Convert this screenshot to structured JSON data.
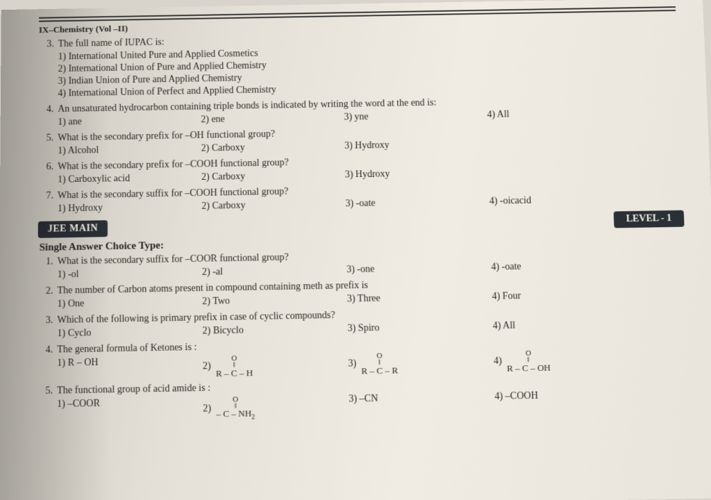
{
  "header": {
    "left": "IX–Chemistry (Vol –II)"
  },
  "sections": {
    "jee": "JEE MAIN",
    "level": "LEVEL - 1",
    "single": "Single Answer Choice Type:"
  },
  "questions": [
    {
      "num": "3.",
      "stem": "The full name of IUPAC is:",
      "layout": "stack",
      "opts": [
        "1) International United Pure and Applied Cosmetics",
        "2) International Union of Pure and Applied Chemistry",
        "3) Indian Union of Pure and Applied Chemistry",
        "4) International Union of Perfect and Applied Chemistry"
      ]
    },
    {
      "num": "4.",
      "stem": "An unsaturated hydrocarbon containing triple bonds is indicated by writing the word at the end is:",
      "layout": "grid4",
      "opts": [
        "1) ane",
        "2) ene",
        "3) yne",
        "4) All"
      ]
    },
    {
      "num": "5.",
      "stem": "What is the secondary prefix for –OH functional group?",
      "layout": "grid4",
      "opts": [
        "1) Alcohol",
        "2) Carboxy",
        "3) Hydroxy",
        ""
      ]
    },
    {
      "num": "6.",
      "stem": "What is the secondary prefix for –COOH functional group?",
      "layout": "grid4",
      "opts": [
        "1) Carboxylic acid",
        "2) Carboxy",
        "3) Hydroxy",
        ""
      ]
    },
    {
      "num": "7.",
      "stem": "What is the secondary suffix for –COOH functional group?",
      "layout": "grid4",
      "opts": [
        "1) Hydroxy",
        "2) Carboxy",
        "3) -oate",
        "4) -oicacid"
      ]
    }
  ],
  "questions2": [
    {
      "num": "1.",
      "stem": "What is the secondary suffix for –COOR functional group?",
      "layout": "grid4",
      "opts": [
        "1) -ol",
        "2) -al",
        "3) -one",
        "4) -oate"
      ]
    },
    {
      "num": "2.",
      "stem": "The number of Carbon atoms present in compound containing meth as prefix is",
      "layout": "grid4",
      "opts": [
        "1) One",
        "2) Two",
        "3) Three",
        "4) Four"
      ]
    },
    {
      "num": "3.",
      "stem": "Which of the following is primary prefix in case of cyclic compounds?",
      "layout": "grid4",
      "opts": [
        "1) Cyclo",
        "2) Bicyclo",
        "3) Spiro",
        "4) All"
      ]
    },
    {
      "num": "4.",
      "stem": "The general formula of Ketones is :",
      "layout": "grid4",
      "chem": true,
      "opts": [
        "1) R – OH",
        "2) ",
        "3) ",
        "4) "
      ]
    },
    {
      "num": "5.",
      "stem": "The functional group of acid amide is :",
      "layout": "grid4",
      "chem": true,
      "opts": [
        "1) –COOR",
        "2) ",
        "3) –CN",
        "4) –COOH"
      ]
    }
  ],
  "chemB": {
    "q4o2": "R – C – H",
    "q4o3": "R – C – R",
    "q4o4": "R – C – OH",
    "q5o2": "– C – NH"
  }
}
